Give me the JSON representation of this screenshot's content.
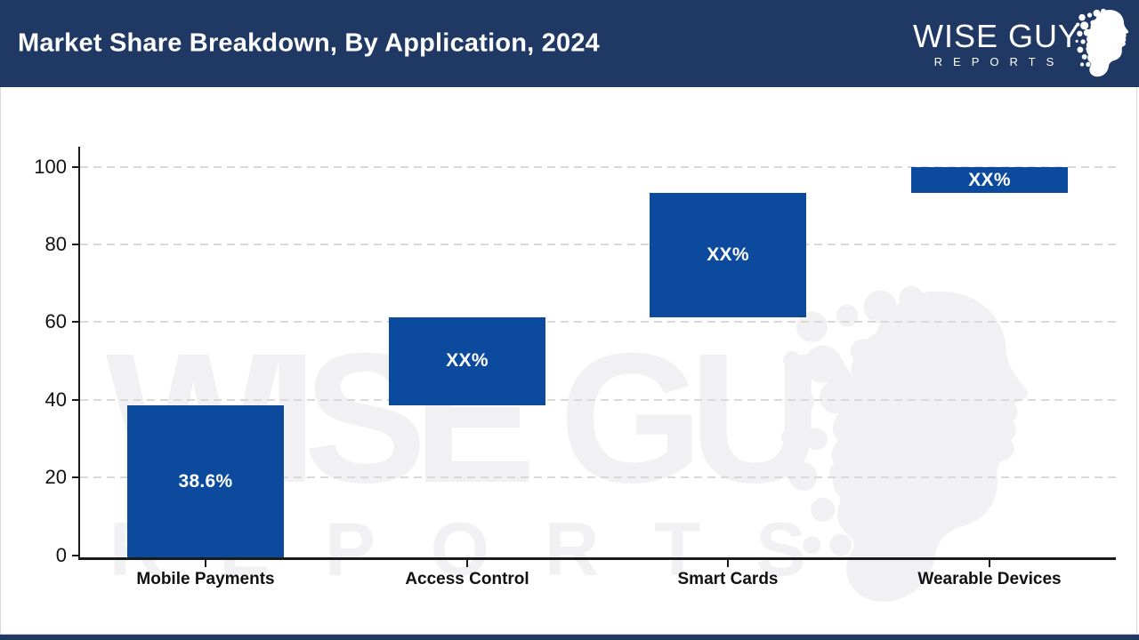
{
  "header": {
    "title": "Market Share Breakdown, By Application, 2024",
    "logo": {
      "line1": "WISE GUY",
      "line2": "REPORTS"
    }
  },
  "watermark": {
    "line1": "WISE GUY",
    "line2": "REPORTS"
  },
  "colors": {
    "header_bg": "#1F3864",
    "bar": "#0C4A9E",
    "axis": "#1a1a1a",
    "grid": "#d9d9d9",
    "bar_label": "#ffffff",
    "watermark": "#f1f1f4"
  },
  "chart_data": {
    "type": "bar",
    "subtype": "waterfall",
    "title": "Market Share Breakdown, By Application, 2024",
    "categories": [
      "Mobile Payments",
      "Access Control",
      "Smart Cards",
      "Wearable Devices"
    ],
    "segments": [
      {
        "category": "Mobile Payments",
        "start": 0,
        "end": 38.6,
        "label": "38.6%"
      },
      {
        "category": "Access Control",
        "start": 38.6,
        "end": 61.3,
        "label": "XX%"
      },
      {
        "category": "Smart Cards",
        "start": 61.3,
        "end": 93.2,
        "label": "XX%"
      },
      {
        "category": "Wearable Devices",
        "start": 93.2,
        "end": 100,
        "label": "XX%"
      }
    ],
    "ylabel": "",
    "xlabel": "",
    "ylim": [
      0,
      100
    ],
    "yticks": [
      0,
      20,
      40,
      60,
      80,
      100
    ],
    "grid": true,
    "legend": false
  }
}
